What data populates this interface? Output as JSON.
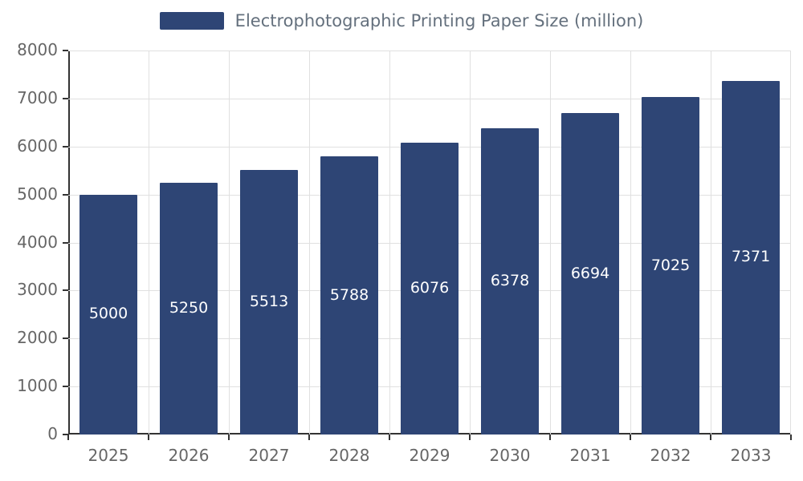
{
  "chart_data": {
    "type": "bar",
    "title": "Electrophotographic Printing Paper Size (million)",
    "categories": [
      "2025",
      "2026",
      "2027",
      "2028",
      "2029",
      "2030",
      "2031",
      "2032",
      "2033"
    ],
    "values": [
      5000,
      5250,
      5513,
      5788,
      6076,
      6378,
      6694,
      7025,
      7371
    ],
    "ylim": [
      0,
      8000
    ],
    "yticks": [
      0,
      1000,
      2000,
      3000,
      4000,
      5000,
      6000,
      7000,
      8000
    ],
    "grid": true,
    "legend_position": "top",
    "bar_color": "#2E4575",
    "value_label_color": "#ffffff",
    "axis_text_color": "#666666",
    "legend_text_color": "#64707d",
    "grid_color": "#e0e0e0",
    "axis_line_color": "#333333"
  }
}
